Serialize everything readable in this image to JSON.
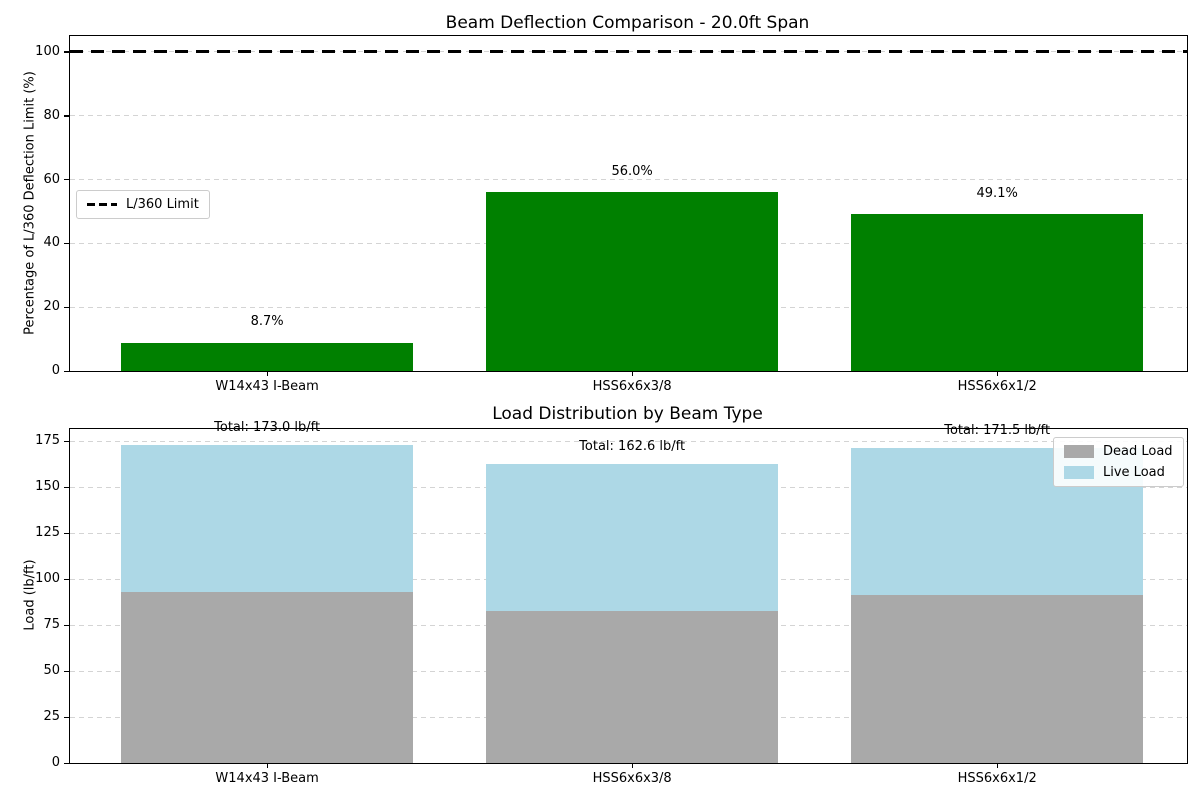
{
  "figure": {
    "background": "#ffffff",
    "text_color": "#000000",
    "grid_color": "#d4d4d4"
  },
  "chart_data": [
    {
      "type": "bar",
      "title": "Beam Deflection Comparison - 20.0ft Span",
      "xlabel": "",
      "ylabel": "Percentage of L/360 Deflection Limit (%)",
      "categories": [
        "W14x43 I-Beam",
        "HSS6x6x3/8",
        "HSS6x6x1/2"
      ],
      "values": [
        8.7,
        56.0,
        49.1
      ],
      "value_labels": [
        "8.7%",
        "56.0%",
        "49.1%"
      ],
      "bar_color": "#008000",
      "ylim": [
        0,
        105
      ],
      "yticks": [
        0,
        20,
        40,
        60,
        80,
        100
      ],
      "grid": true,
      "limit_line": {
        "value": 100,
        "label": "L/360 Limit",
        "color": "#000000",
        "style": "dashed"
      },
      "legend_position": "center left"
    },
    {
      "type": "stacked-bar",
      "title": "Load Distribution by Beam Type",
      "xlabel": "",
      "ylabel": "Load (lb/ft)",
      "categories": [
        "W14x43 I-Beam",
        "HSS6x6x3/8",
        "HSS6x6x1/2"
      ],
      "series": [
        {
          "name": "Dead Load",
          "color": "#a9a9a9",
          "values": [
            93.0,
            82.6,
            91.5
          ]
        },
        {
          "name": "Live Load",
          "color": "#add8e6",
          "values": [
            80.0,
            80.0,
            80.0
          ]
        }
      ],
      "totals": [
        173.0,
        162.6,
        171.5
      ],
      "total_labels": [
        "Total: 173.0 lb/ft",
        "Total: 162.6 lb/ft",
        "Total: 171.5 lb/ft"
      ],
      "ylim": [
        0,
        181.7
      ],
      "yticks": [
        0,
        25,
        50,
        75,
        100,
        125,
        150,
        175
      ],
      "grid": true,
      "legend_position": "upper right"
    }
  ]
}
